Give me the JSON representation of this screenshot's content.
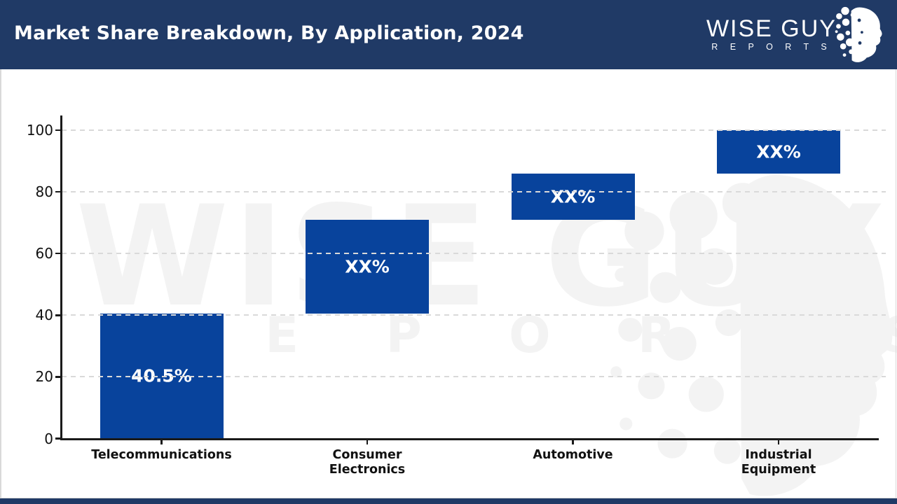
{
  "header": {
    "title": "Market Share Breakdown, By Application, 2024",
    "bg_color": "#203a66",
    "logo": {
      "name_line": "WISE GUY",
      "reports_line": "R E P O R T S"
    }
  },
  "watermark": {
    "line1": "WISE GUY",
    "line2": "R E P O R T S"
  },
  "chart_data": {
    "type": "bar",
    "subtype": "floating-waterfall",
    "title": "Market Share Breakdown, By Application, 2024",
    "categories": [
      {
        "name": "Telecommunications",
        "lines": [
          "Telecommunications"
        ]
      },
      {
        "name": "Consumer Electronics",
        "lines": [
          "Consumer",
          "Electronics"
        ]
      },
      {
        "name": "Automotive",
        "lines": [
          "Automotive"
        ]
      },
      {
        "name": "Industrial Equipment",
        "lines": [
          "Industrial",
          "Equipment"
        ]
      }
    ],
    "bars": [
      {
        "category": "Telecommunications",
        "start": 0,
        "end": 40.5,
        "label": "40.5%"
      },
      {
        "category": "Consumer Electronics",
        "start": 40.5,
        "end": 71,
        "label": "XX%"
      },
      {
        "category": "Automotive",
        "start": 71,
        "end": 86,
        "label": "XX%"
      },
      {
        "category": "Industrial Equipment",
        "start": 86,
        "end": 100,
        "label": "XX%"
      }
    ],
    "ylim": [
      0,
      100
    ],
    "yticks": [
      0,
      20,
      40,
      60,
      80,
      100
    ],
    "ytick_labels": [
      "0",
      "20",
      "40",
      "60",
      "80",
      "100"
    ],
    "grid": {
      "horizontal": true,
      "style": "dashed",
      "color": "#d9d9d9"
    },
    "legend": "none",
    "bar_color": "#08439c",
    "bar_label_color": "#ffffff",
    "axis_color": "#1a1a1a"
  }
}
